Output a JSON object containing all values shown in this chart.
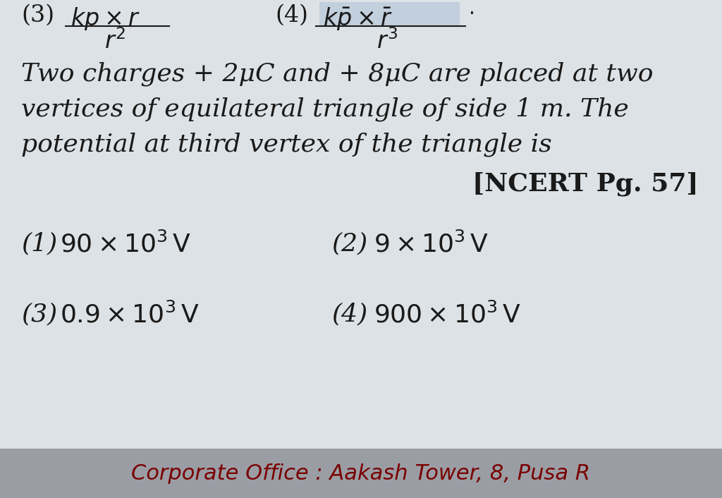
{
  "bg_color": "#dce2e6",
  "footer_bg": "#9a9ea4",
  "footer_text": "Corporate Office : Aakash Tower, 8, Pusa R",
  "footer_color": "#7a0000",
  "text_color": "#1a1a1a",
  "question_line1": "Two charges + 2μC and + 8μC are placed at two",
  "question_line2": "vertices of equilateral triangle of side 1 m. The",
  "question_line3": "potential at third vertex of the triangle is",
  "reference": "[NCERT Pg. 57]",
  "opt1_label": "(1)",
  "opt1_val": "90 × 10",
  "opt2_label": "(2)",
  "opt2_val": "9 × 10",
  "opt3_label": "(3)",
  "opt3_val": "0.9 × 10",
  "opt4_label": "(4)",
  "opt4_val": "900 × 10",
  "top_label3": "(3)",
  "top_label4": "(4)",
  "main_font_size": 26,
  "option_font_size": 26,
  "formula_font_size": 24,
  "ref_font_size": 26,
  "footer_font_size": 22
}
